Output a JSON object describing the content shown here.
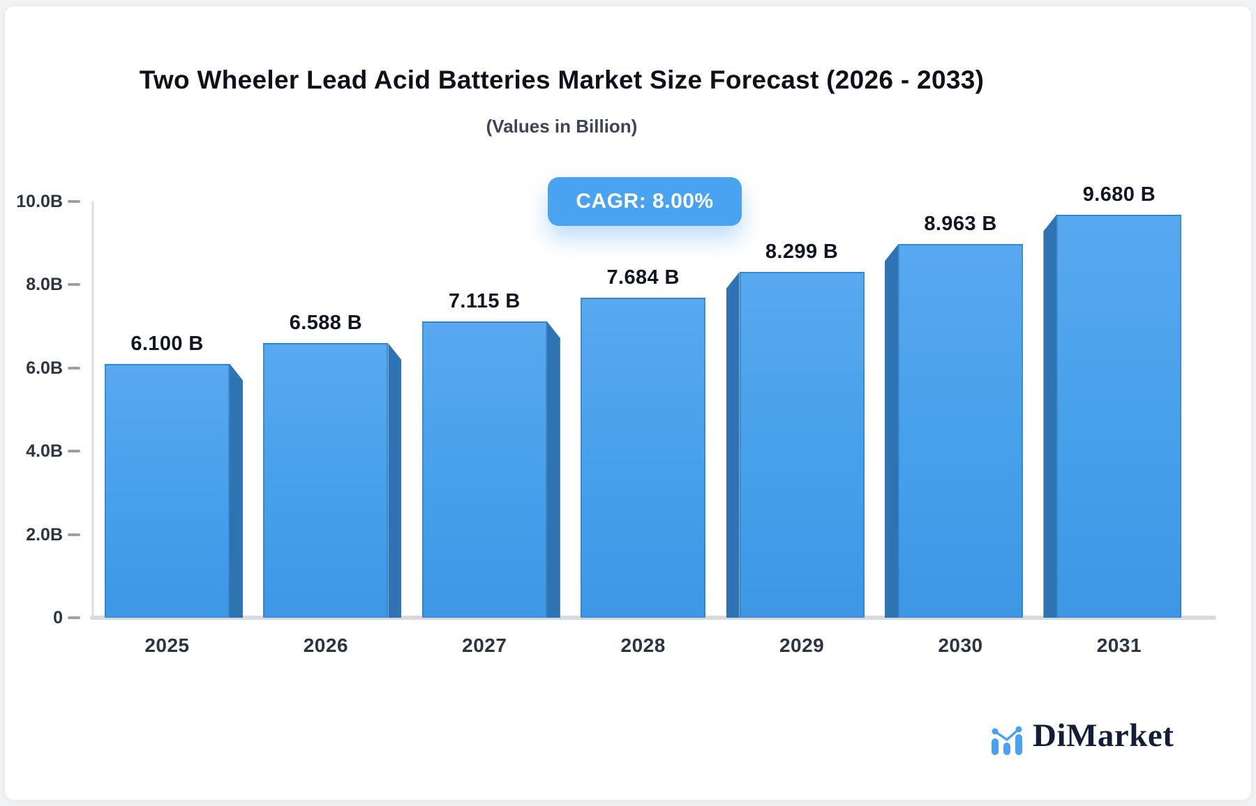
{
  "header": {
    "title": "Two Wheeler Lead Acid Batteries Market Size Forecast (2026 - 2033)",
    "subtitle": "(Values in Billion)"
  },
  "badge": {
    "label": "CAGR: 8.00%",
    "color": "#4aa3f1",
    "text_color": "#ffffff"
  },
  "watermark": {
    "brand": "DiMarket",
    "icon": "bar-chart-logo-icon",
    "icon_color": "#4aa0f2",
    "text_color": "#141e36"
  },
  "colors": {
    "bar": "#46a0ea",
    "bar_top": "#58a9ef",
    "bar_bottom": "#3d97e6",
    "bar_side": "#2e73b2",
    "axis": "#e1e4e8",
    "baseline": "#d8dbde",
    "tick": "#9aa1aa",
    "label": "#2b3444"
  },
  "chart_data": {
    "type": "bar",
    "title": "Two Wheeler Lead Acid Batteries Market Size Forecast (2026 - 2033)",
    "subtitle": "(Values in Billion)",
    "annotation": "CAGR: 8.00%",
    "categories": [
      "2025",
      "2026",
      "2027",
      "2028",
      "2029",
      "2030",
      "2031"
    ],
    "values": [
      6.1,
      6.588,
      7.115,
      7.684,
      8.299,
      8.963,
      9.68
    ],
    "value_labels": [
      "6.100 B",
      "6.588 B",
      "7.115 B",
      "7.684 B",
      "8.299 B",
      "8.963 B",
      "9.680 B"
    ],
    "y_ticks": [
      {
        "label": "10.0B",
        "value": 10
      },
      {
        "label": "8.0B",
        "value": 8
      },
      {
        "label": "6.0B",
        "value": 6
      },
      {
        "label": "4.0B",
        "value": 4
      },
      {
        "label": "2.0B",
        "value": 2
      },
      {
        "label": "0",
        "value": 0
      }
    ],
    "ylim": [
      0,
      10
    ],
    "xlabel": "",
    "ylabel": "",
    "grid": false,
    "legend": false
  }
}
